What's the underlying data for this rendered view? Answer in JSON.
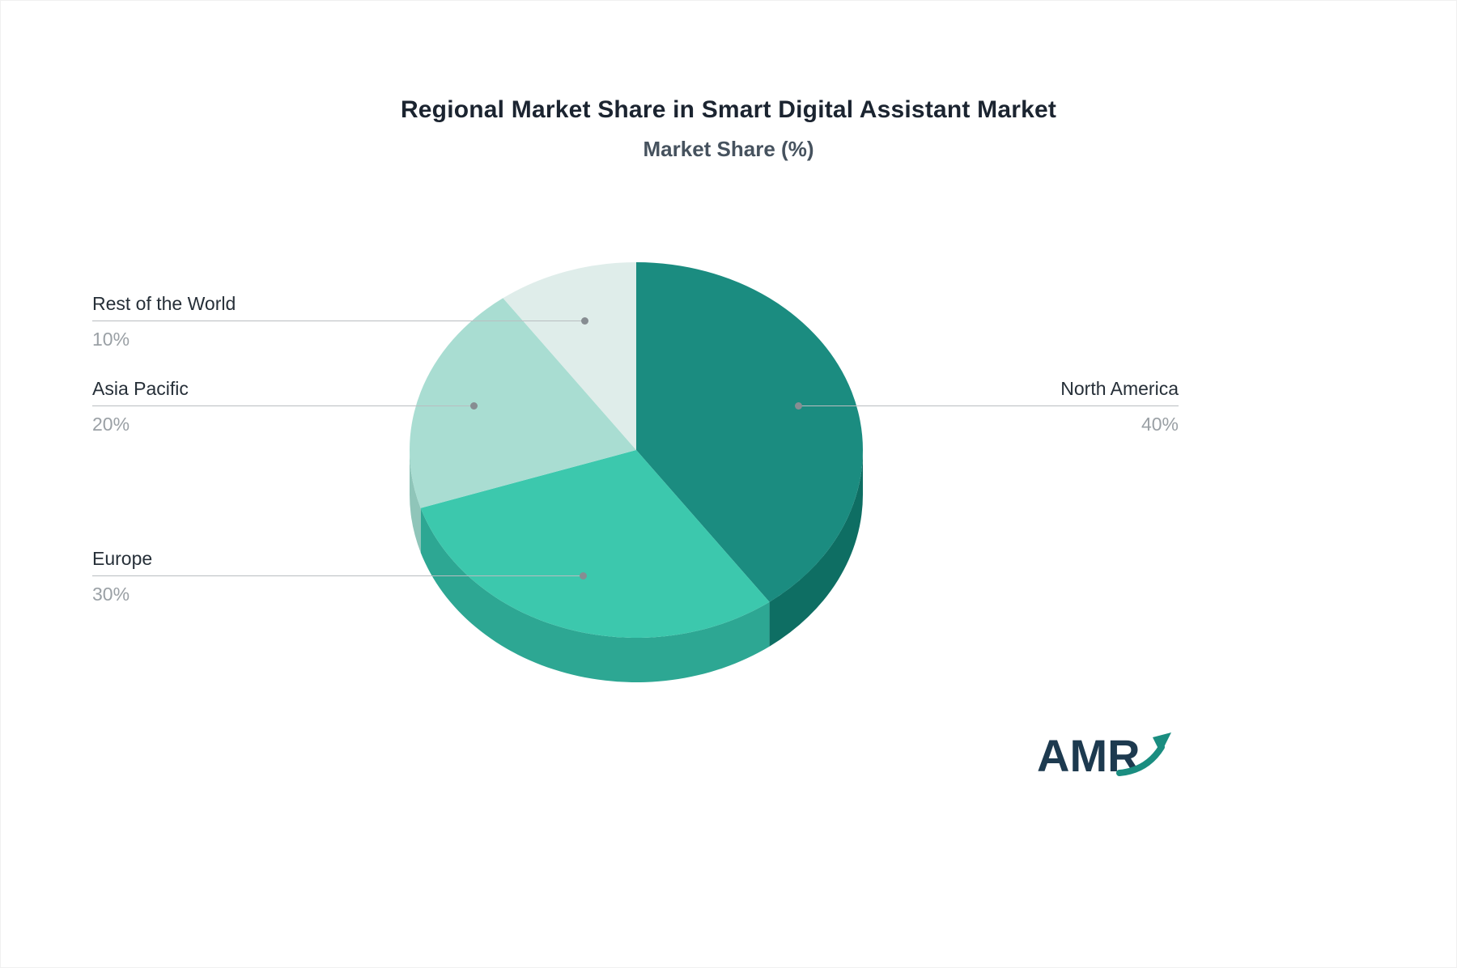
{
  "title": "Regional Market Share in Smart Digital Assistant Market",
  "subtitle": "Market Share (%)",
  "logo": {
    "text": "AMR"
  },
  "chart_data": {
    "type": "pie",
    "title": "Regional Market Share in Smart Digital Assistant Market",
    "subtitle": "Market Share (%)",
    "unit": "%",
    "style": "3d-pie",
    "start_angle_deg": -90,
    "direction": "clockwise",
    "legend_position": "callouts",
    "slices": [
      {
        "label": "North America",
        "value": 40,
        "value_label": "40%",
        "color": "#1b8c80",
        "shade": "#0e6e63"
      },
      {
        "label": "Europe",
        "value": 30,
        "value_label": "30%",
        "color": "#3cc8ad",
        "shade": "#2da793"
      },
      {
        "label": "Asia Pacific",
        "value": 20,
        "value_label": "20%",
        "color": "#a9ddd2",
        "shade": "#8fc5b9"
      },
      {
        "label": "Rest of the World",
        "value": 10,
        "value_label": "10%",
        "color": "#dfedea",
        "shade": "#c3d8d2"
      }
    ],
    "callout_colors": {
      "label": "#262f38",
      "value": "#9aa0a5",
      "line": "#b9bdc0",
      "dot": "#878d92"
    }
  }
}
